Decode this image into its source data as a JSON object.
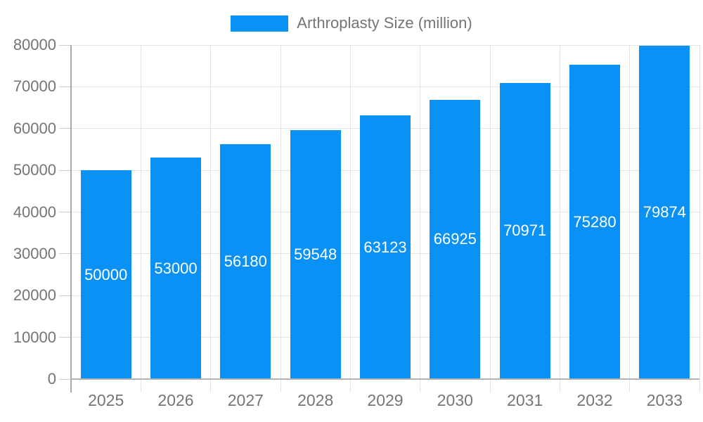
{
  "legend": {
    "label": "Arthroplasty Size (million)"
  },
  "chart_data": {
    "type": "bar",
    "title": "Arthroplasty Size (million)",
    "categories": [
      "2025",
      "2026",
      "2027",
      "2028",
      "2029",
      "2030",
      "2031",
      "2032",
      "2033"
    ],
    "values": [
      50000,
      53000,
      56180,
      59548,
      63123,
      66925,
      70971,
      75280,
      79874
    ],
    "series_name": "Arthroplasty Size (million)",
    "xlabel": "",
    "ylabel": "",
    "ylim": [
      0,
      80000
    ],
    "yticks": [
      0,
      10000,
      20000,
      30000,
      40000,
      50000,
      60000,
      70000,
      80000
    ],
    "ytick_labels": [
      "0",
      "10000",
      "20000",
      "30000",
      "40000",
      "50000",
      "60000",
      "70000",
      "80000"
    ],
    "grid": true,
    "legend_position": "top",
    "bar_labels_inside": true
  },
  "colors": {
    "bar": "#0991F5",
    "bar_label": "#FFFFFF",
    "axis_text": "#757575",
    "gridline": "#E3E3E3",
    "axis_line": "#B3B3B3",
    "y_axis_line": "#A9A9A9",
    "tick": "#CCCCCC",
    "background": "#FFFFFF"
  }
}
